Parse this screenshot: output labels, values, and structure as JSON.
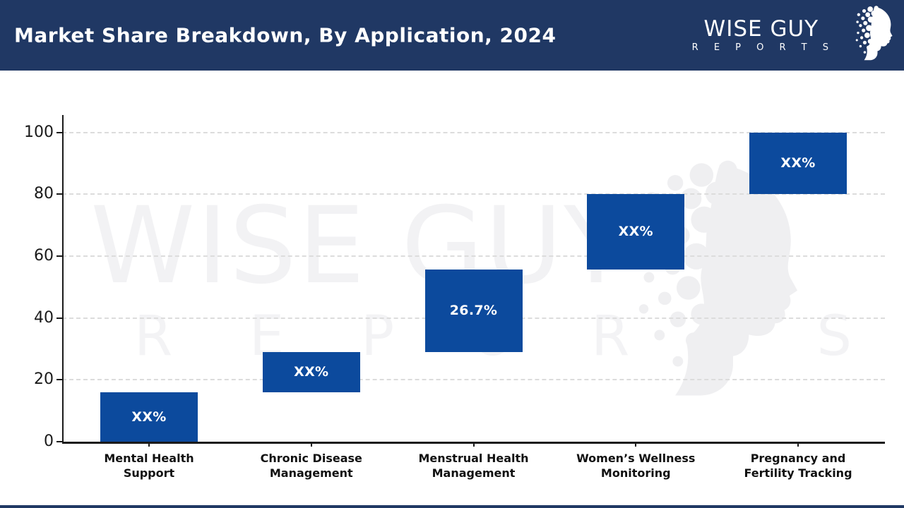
{
  "header": {
    "title": "Market Share Breakdown, By Application, 2024",
    "logo": {
      "name_line": "WISE GUY",
      "sub_line": "R E P O R T S",
      "face_icon": "dotted-face-profile-icon"
    }
  },
  "watermark": {
    "line1": "WISE GUY",
    "line2": "R E P O R T S",
    "face_icon": "dotted-face-profile-icon"
  },
  "colors": {
    "header_bg": "#203864",
    "bar": "#0c4a9d",
    "axis": "#1a1a1a",
    "gridline": "#dcdcdc",
    "bar_label_text": "#ffffff",
    "watermark": "#f2f2f4"
  },
  "chart_data": {
    "type": "bar",
    "variant": "waterfall",
    "title": "Market Share Breakdown, By Application, 2024",
    "xlabel": "",
    "ylabel": "",
    "ylim": [
      0,
      105
    ],
    "yticks": [
      0,
      20,
      40,
      60,
      80,
      100
    ],
    "grid": "horizontal-dashed",
    "legend": "none",
    "categories": [
      "Mental Health Support",
      "Chronic Disease Management",
      "Menstrual Health Management",
      "Women’s Wellness Monitoring",
      "Pregnancy and Fertility Tracking"
    ],
    "category_label_lines": [
      [
        "Mental Health",
        "Support"
      ],
      [
        "Chronic Disease",
        "Management"
      ],
      [
        "Menstrual Health",
        "Management"
      ],
      [
        "Women’s Wellness",
        "Monitoring"
      ],
      [
        "Pregnancy and",
        "Fertility Tracking"
      ]
    ],
    "segments": [
      {
        "category": "Mental Health Support",
        "start": 0,
        "end": 16,
        "value_label": "XX%"
      },
      {
        "category": "Chronic Disease Management",
        "start": 16,
        "end": 29,
        "value_label": "XX%"
      },
      {
        "category": "Menstrual Health Management",
        "start": 29,
        "end": 55.7,
        "value_label": "26.7%"
      },
      {
        "category": "Women’s Wellness Monitoring",
        "start": 55.7,
        "end": 80,
        "value_label": "XX%"
      },
      {
        "category": "Pregnancy and Fertility Tracking",
        "start": 80,
        "end": 100,
        "value_label": "XX%"
      }
    ]
  }
}
